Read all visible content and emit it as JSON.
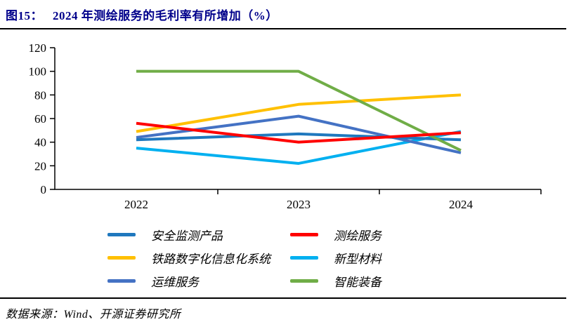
{
  "figure": {
    "label": "图15：",
    "title": "2024 年测绘服务的毛利率有所增加（%）"
  },
  "source": {
    "text": "数据来源：Wind、开源证券研究所"
  },
  "chart_data": {
    "type": "line",
    "title": "2024 年测绘服务的毛利率有所增加（%）",
    "xlabel": "",
    "ylabel": "",
    "categories": [
      "2022",
      "2023",
      "2024"
    ],
    "series": [
      {
        "name": "安全监测产品",
        "color": "#1F78BE",
        "values": [
          42,
          47,
          42
        ]
      },
      {
        "name": "测绘服务",
        "color": "#FF0000",
        "values": [
          56,
          40,
          48
        ]
      },
      {
        "name": "铁路数字化信息化系统",
        "color": "#FFC000",
        "values": [
          49,
          72,
          80
        ]
      },
      {
        "name": "新型材料",
        "color": "#00B0F0",
        "values": [
          35,
          22,
          49
        ]
      },
      {
        "name": "运维服务",
        "color": "#4472C4",
        "values": [
          44,
          62,
          31
        ]
      },
      {
        "name": "智能装备",
        "color": "#70AD47",
        "values": [
          100,
          100,
          33
        ]
      }
    ],
    "ylim": [
      0,
      120
    ],
    "yticks": [
      0,
      20,
      40,
      60,
      80,
      100,
      120
    ],
    "grid": false,
    "legend_position": "bottom",
    "axis_color": "#000000",
    "draw_order": [
      3,
      4,
      0,
      2,
      5,
      1
    ]
  }
}
